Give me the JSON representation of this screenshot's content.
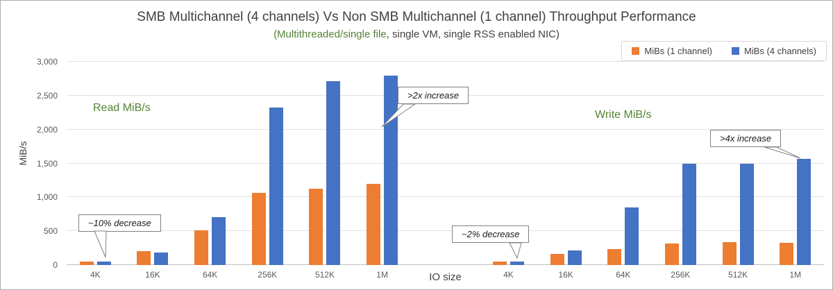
{
  "chart_data": {
    "type": "bar",
    "title": "SMB Multichannel (4 channels) Vs Non SMB Multichannel (1 channel) Throughput Performance",
    "subtitle_green": "(Multithreaded/single file",
    "subtitle_rest": ", single VM, single RSS enabled NIC)",
    "ylabel": "MiB/s",
    "xlabel": "IO size",
    "ylim": [
      0,
      3000
    ],
    "ytick_step": 500,
    "yticks": [
      "0",
      "500",
      "1,000",
      "1,500",
      "2,000",
      "2,500",
      "3,000"
    ],
    "grid": "horizontal",
    "legend_position": "top-right",
    "series": [
      {
        "name": "MiBs (1 channel)",
        "color": "#ED7D31"
      },
      {
        "name": "MiBs (4 channels)",
        "color": "#4472C4"
      }
    ],
    "sections": [
      {
        "label": "Read MiB/s",
        "categories": [
          "4K",
          "16K",
          "64K",
          "256K",
          "512K",
          "1M"
        ],
        "series": [
          {
            "name": "MiBs (1 channel)",
            "values": [
              55,
              200,
              510,
              1060,
              1130,
              1200
            ]
          },
          {
            "name": "MiBs (4 channels)",
            "values": [
              50,
              180,
              710,
              2320,
              2710,
              2800
            ]
          }
        ]
      },
      {
        "label": "Write MiB/s",
        "categories": [
          "4K",
          "16K",
          "64K",
          "256K",
          "512K",
          "1M"
        ],
        "series": [
          {
            "name": "MiBs (1 channel)",
            "values": [
              55,
              165,
              235,
              315,
              335,
              325
            ]
          },
          {
            "name": "MiBs (4 channels)",
            "values": [
              54,
              215,
              845,
              1495,
              1495,
              1565
            ]
          }
        ]
      }
    ],
    "annotations": [
      {
        "text": "~10% decrease"
      },
      {
        "text": ">2x increase"
      },
      {
        "text": "~2% decrease"
      },
      {
        "text": ">4x increase"
      }
    ]
  }
}
